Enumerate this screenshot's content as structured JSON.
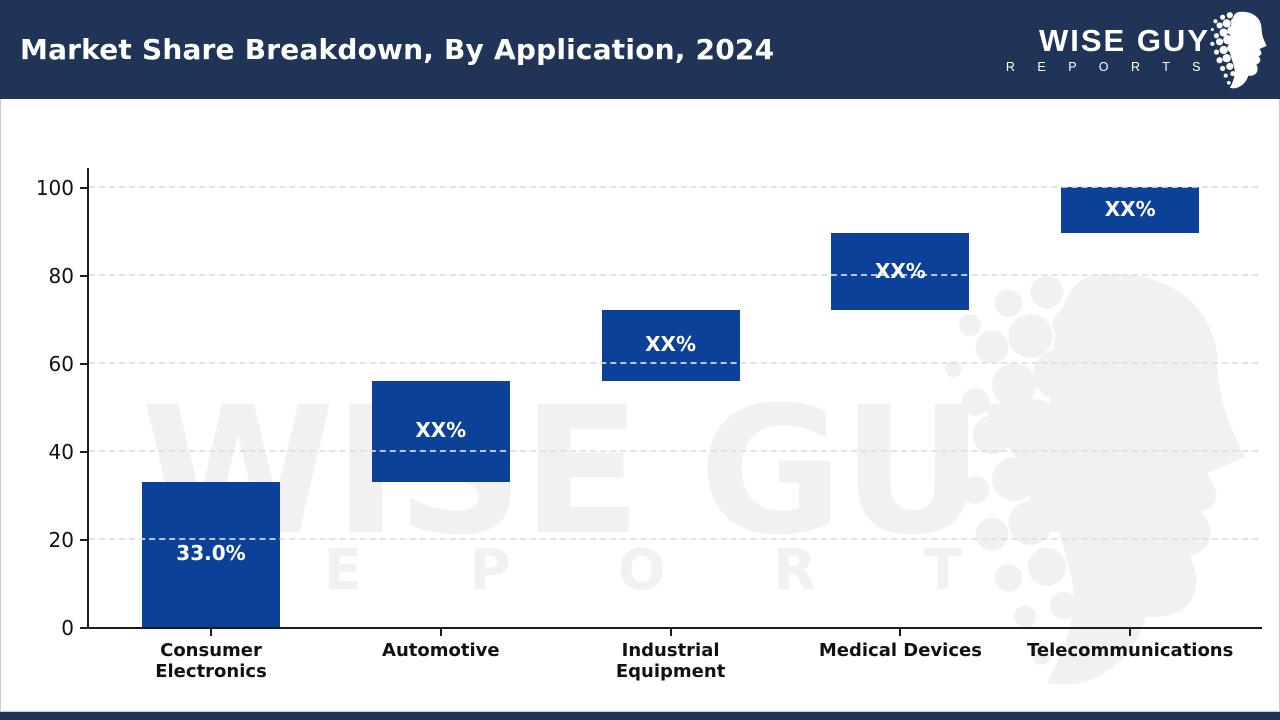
{
  "header": {
    "title": "Market Share Breakdown, By Application, 2024",
    "logo_brand": "WISE GUY",
    "logo_sub": "R E P O R T S",
    "bg_color": "#203457"
  },
  "watermark": {
    "brand": "WISE GUY",
    "sub": "R E P O R T S"
  },
  "chart_data": {
    "type": "bar",
    "subtype": "waterfall",
    "title": "Market Share Breakdown, By Application, 2024",
    "categories": [
      "Consumer\nElectronics",
      "Automotive",
      "Industrial\nEquipment",
      "Medical Devices",
      "Telecommunications"
    ],
    "series": [
      {
        "name": "Market Share",
        "segments": [
          {
            "category": "Consumer Electronics",
            "start": 0,
            "end": 33,
            "label": "33.0%"
          },
          {
            "category": "Automotive",
            "start": 33,
            "end": 56,
            "label": "XX%"
          },
          {
            "category": "Industrial Equipment",
            "start": 56,
            "end": 72,
            "label": "XX%"
          },
          {
            "category": "Medical Devices",
            "start": 72,
            "end": 89.5,
            "label": "XX%"
          },
          {
            "category": "Telecommunications",
            "start": 89.5,
            "end": 100,
            "label": "XX%"
          }
        ]
      }
    ],
    "ylim": [
      0,
      100
    ],
    "yticks": [
      0,
      20,
      40,
      60,
      80,
      100
    ],
    "xlabel": "",
    "ylabel": "",
    "grid": "horizontal-dashed",
    "legend": "none",
    "bar_color": "#0b4199",
    "bar_label_color": "#ffffff"
  }
}
